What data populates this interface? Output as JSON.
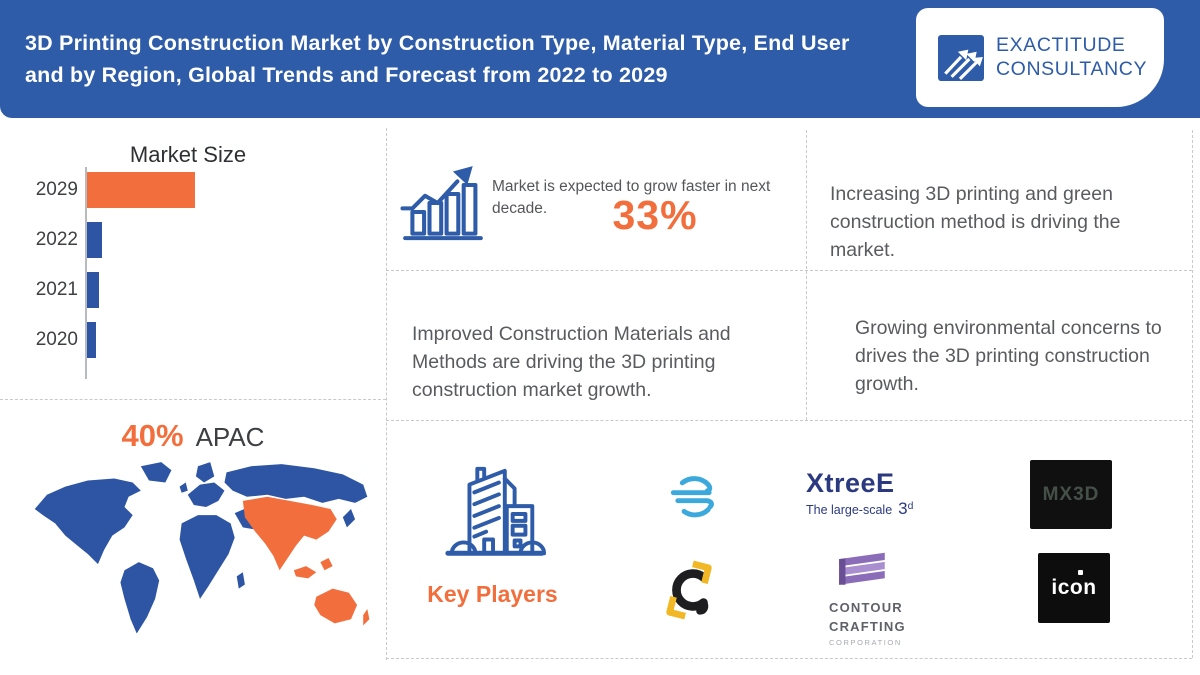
{
  "header": {
    "title_lines": [
      "3D Printing Construction Market by Construction Type, Material Type, End User",
      "and by Region, Global Trends and Forecast from 2022 to 2029"
    ],
    "brand": {
      "line1": "EXACTITUDE",
      "line2": "CONSULTANCY"
    }
  },
  "chart_data": {
    "type": "bar",
    "title": "Market Size",
    "orientation": "horizontal",
    "categories": [
      "2029",
      "2022",
      "2021",
      "2020"
    ],
    "values": [
      100,
      14,
      11,
      8
    ],
    "value_note": "relative bar lengths; chart shows no numeric axis",
    "bar_colors": [
      "#F26F3D",
      "#2D55A4",
      "#2D55A4",
      "#2D55A4"
    ],
    "highlight_category": "2029",
    "grid": false,
    "legend": false
  },
  "insights": {
    "growth": {
      "text": "Market is expected to grow faster in next decade.",
      "value": "33%"
    },
    "right_top": "Increasing 3D printing and green construction method is driving the market.",
    "mid_left": "Improved Construction Materials and Methods are driving the 3D printing construction market growth.",
    "mid_right": "Growing environmental concerns to drives the 3D printing construction growth."
  },
  "region": {
    "value": "40%",
    "label": "APAC"
  },
  "key_players": {
    "label": "Key Players",
    "logos": {
      "xtreee": {
        "name": "XtreeE",
        "tagline": "The large-scale",
        "mark": "3",
        "mark_sup": "d"
      },
      "mx3d": {
        "text": "MX3D"
      },
      "contour_crafting": {
        "line1": "CONTOUR",
        "line2": "CRAFTING",
        "line3": "CORPORATION"
      },
      "icon": {
        "pre": "ic",
        "o": "o",
        "post": "n"
      }
    }
  },
  "colors": {
    "brand_blue": "#2E5CA8",
    "accent_orange": "#F26F3D",
    "map_blue": "#2D55A4",
    "text_gray": "#55565A"
  }
}
